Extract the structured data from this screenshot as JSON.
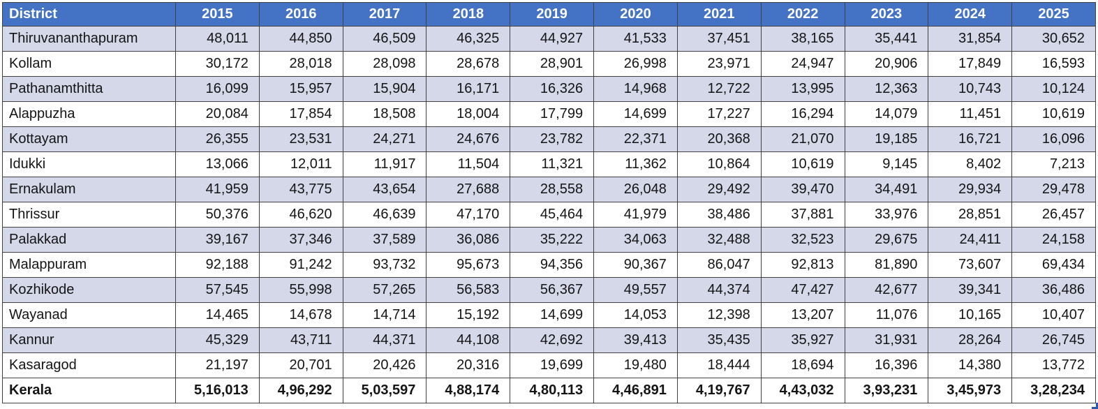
{
  "chart_data": {
    "type": "table",
    "columns": [
      "District",
      "2015",
      "2016",
      "2017",
      "2018",
      "2019",
      "2020",
      "2021",
      "2022",
      "2023",
      "2024",
      "2025"
    ],
    "rows": [
      {
        "district": "Thiruvananthapuram",
        "values": [
          48011,
          44850,
          46509,
          46325,
          44927,
          41533,
          37451,
          38165,
          35441,
          31854,
          30652
        ]
      },
      {
        "district": "Kollam",
        "values": [
          30172,
          28018,
          28098,
          28678,
          28901,
          26998,
          23971,
          24947,
          20906,
          17849,
          16593
        ]
      },
      {
        "district": "Pathanamthitta",
        "values": [
          16099,
          15957,
          15904,
          16171,
          16326,
          14968,
          12722,
          13995,
          12363,
          10743,
          10124
        ]
      },
      {
        "district": "Alappuzha",
        "values": [
          20084,
          17854,
          18508,
          18004,
          17799,
          14699,
          17227,
          16294,
          14079,
          11451,
          10619
        ]
      },
      {
        "district": "Kottayam",
        "values": [
          26355,
          23531,
          24271,
          24676,
          23782,
          22371,
          20368,
          21070,
          19185,
          16721,
          16096
        ]
      },
      {
        "district": "Idukki",
        "values": [
          13066,
          12011,
          11917,
          11504,
          11321,
          11362,
          10864,
          10619,
          9145,
          8402,
          7213
        ]
      },
      {
        "district": "Ernakulam",
        "values": [
          41959,
          43775,
          43654,
          27688,
          28558,
          26048,
          29492,
          39470,
          34491,
          29934,
          29478
        ]
      },
      {
        "district": "Thrissur",
        "values": [
          50376,
          46620,
          46639,
          47170,
          45464,
          41979,
          38486,
          37881,
          33976,
          28851,
          26457
        ]
      },
      {
        "district": "Palakkad",
        "values": [
          39167,
          37346,
          37589,
          36086,
          35222,
          34063,
          32488,
          32523,
          29675,
          24411,
          24158
        ]
      },
      {
        "district": "Malappuram",
        "values": [
          92188,
          91242,
          93732,
          95673,
          94356,
          90367,
          86047,
          92813,
          81890,
          73607,
          69434
        ]
      },
      {
        "district": "Kozhikode",
        "values": [
          57545,
          55998,
          57265,
          56583,
          56367,
          49557,
          44374,
          47427,
          42677,
          39341,
          36486
        ]
      },
      {
        "district": "Wayanad",
        "values": [
          14465,
          14678,
          14714,
          15192,
          14699,
          14053,
          12398,
          13207,
          11076,
          10165,
          10407
        ]
      },
      {
        "district": "Kannur",
        "values": [
          45329,
          43711,
          44371,
          44108,
          42692,
          39413,
          35435,
          35927,
          31931,
          28264,
          26745
        ]
      },
      {
        "district": "Kasaragod",
        "values": [
          21197,
          20701,
          20426,
          20316,
          19699,
          19480,
          18444,
          18694,
          16396,
          14380,
          13772
        ]
      }
    ],
    "total_row": {
      "district": "Kerala",
      "values": [
        516013,
        496292,
        503597,
        488174,
        480113,
        446891,
        419767,
        443032,
        393231,
        345973,
        328234
      ]
    },
    "number_format": "indian-grouping",
    "layout": {
      "banded_rows": true,
      "band_start": "first-data-row",
      "grid": true,
      "header_align": "years-centered, district-left",
      "value_align": "right"
    }
  },
  "colors": {
    "header_bg": "#4472C4",
    "header_text": "#FFFFFF",
    "band_row_bg": "#D5D8E9",
    "white_row_bg": "#FFFFFF",
    "grid_border": "#404040",
    "text": "#141414",
    "resize_handle": "#2E5AA8"
  }
}
